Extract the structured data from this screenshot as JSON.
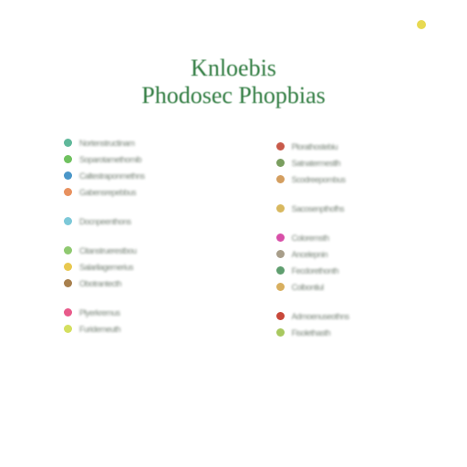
{
  "corner_dot_color": "#e8d951",
  "title": {
    "line1": "Knloebis",
    "line2": "Phodosec Phopbias",
    "color": "#2d7a3e",
    "fontsize": 26
  },
  "layout": {
    "dot_size": 9,
    "label_fontsize": 9,
    "label_color": "#4a5a4a"
  },
  "left_column": [
    {
      "items": [
        {
          "color": "#5fb89a",
          "label": "Nortenstructinam"
        },
        {
          "color": "#6fc15f",
          "label": "Soparotamethomib"
        },
        {
          "color": "#4a96c8",
          "label": "Caltestraponmethns"
        },
        {
          "color": "#e8915f",
          "label": "Gabensrepebbus"
        }
      ]
    },
    {
      "items": [
        {
          "color": "#7cc8d8",
          "label": "Docnpeenthons"
        }
      ]
    },
    {
      "items": [
        {
          "color": "#8fc970",
          "label": "Citanstruerestbou"
        },
        {
          "color": "#e8c84f",
          "label": "Salarilagemerius"
        },
        {
          "color": "#a8804d",
          "label": "Obotrantecth"
        }
      ]
    },
    {
      "items": [
        {
          "color": "#e85a8a",
          "label": "Plyerkremus"
        },
        {
          "color": "#d4df5f",
          "label": "Furidemeuth"
        }
      ]
    }
  ],
  "right_column": [
    {
      "items": [
        {
          "color": "#c85a4a",
          "label": "Plorathostebiu"
        },
        {
          "color": "#7a9e5f",
          "label": "Satnatermestlh"
        },
        {
          "color": "#d49e5f",
          "label": "Scodreepombus"
        }
      ]
    },
    {
      "items": [
        {
          "color": "#d8b85f",
          "label": "Sacosenpthofhs"
        }
      ]
    },
    {
      "items": [
        {
          "color": "#d84fa8",
          "label": "Coloremsth"
        },
        {
          "color": "#a89e8a",
          "label": "Ancelepnin"
        },
        {
          "color": "#5f9e6f",
          "label": "Fecdorethonth"
        },
        {
          "color": "#d8af5f",
          "label": "Colbontiul"
        }
      ]
    },
    {
      "items": [
        {
          "color": "#c8483a",
          "label": "Admoenuseothns"
        },
        {
          "color": "#a8c85f",
          "label": "Fisolethasth"
        }
      ]
    }
  ]
}
